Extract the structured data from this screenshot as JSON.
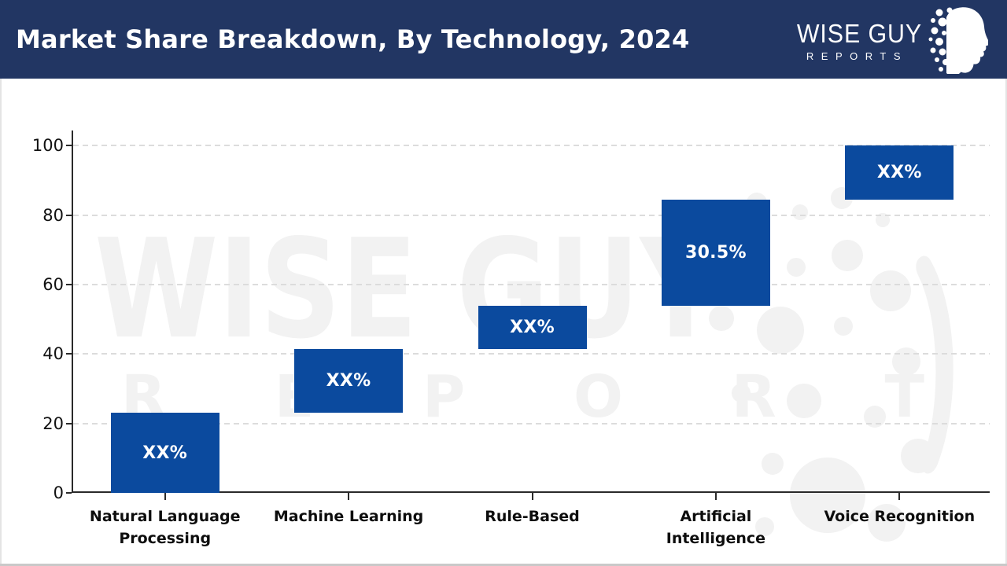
{
  "header": {
    "title": "Market Share Breakdown, By Technology, 2024",
    "logo": {
      "line1": "WISE GUY",
      "line2": "REPORTS"
    }
  },
  "watermark": {
    "line1": "WISE GUY",
    "line2": "R E P O R T S"
  },
  "chart_data": {
    "type": "bar",
    "subtype": "floating-segment-waterfall",
    "title": "Market Share Breakdown, By Technology, 2024",
    "categories": [
      "Natural Language Processing",
      "Machine Learning",
      "Rule-Based",
      "Artificial Intelligence",
      "Voice Recognition"
    ],
    "category_lines": [
      [
        "Natural Language",
        "Processing"
      ],
      [
        "Machine Learning"
      ],
      [
        "Rule-Based"
      ],
      [
        "Artificial",
        "Intelligence"
      ],
      [
        "Voice Recognition"
      ]
    ],
    "segments": [
      {
        "start": 0,
        "end": 23,
        "label": "XX%"
      },
      {
        "start": 23,
        "end": 41.5,
        "label": "XX%"
      },
      {
        "start": 41.5,
        "end": 54,
        "label": "XX%"
      },
      {
        "start": 54,
        "end": 84.5,
        "label": "30.5%"
      },
      {
        "start": 84.5,
        "end": 100,
        "label": "XX%"
      }
    ],
    "values": [
      23,
      18.5,
      12.5,
      30.5,
      15.5
    ],
    "yticks": [
      0,
      20,
      40,
      60,
      80,
      100
    ],
    "ylim": [
      0,
      104.5
    ],
    "xlabel": "",
    "ylabel": "",
    "grid": "dashed-horizontal",
    "legend": "none",
    "colors": {
      "bar": "#0B4A9E",
      "bar_label": "#FFFFFF",
      "header_bg": "#223663",
      "axis": "#2A2A2A",
      "gridline": "#DCDCDC",
      "watermark": "#F2F2F2"
    }
  }
}
